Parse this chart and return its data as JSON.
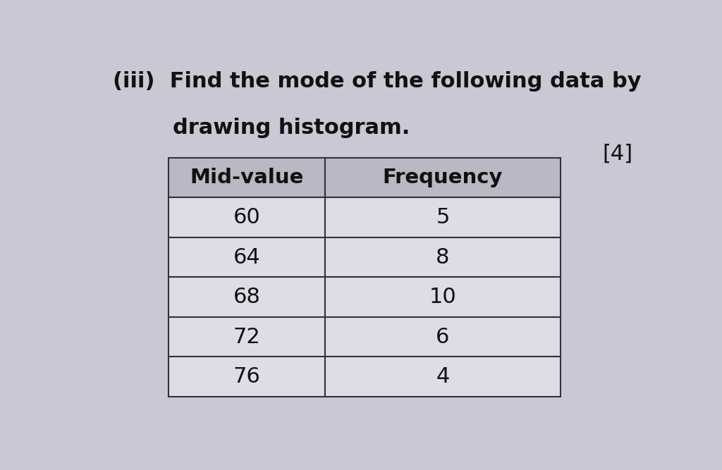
{
  "title_line1": "(iii)  Find the mode of the following data by",
  "title_line2": "        drawing histogram.",
  "marks": "[4]",
  "col1_header": "Mid-value",
  "col2_header": "Frequency",
  "mid_values": [
    60,
    64,
    68,
    72,
    76
  ],
  "frequencies": [
    5,
    8,
    10,
    6,
    4
  ],
  "bg_color": "#c8c9d4",
  "header_bg": "#b8b9c4",
  "cell_bg": "#dcdde6",
  "text_color": "#111111",
  "title_fontsize": 22,
  "header_fontsize": 21,
  "cell_fontsize": 22
}
